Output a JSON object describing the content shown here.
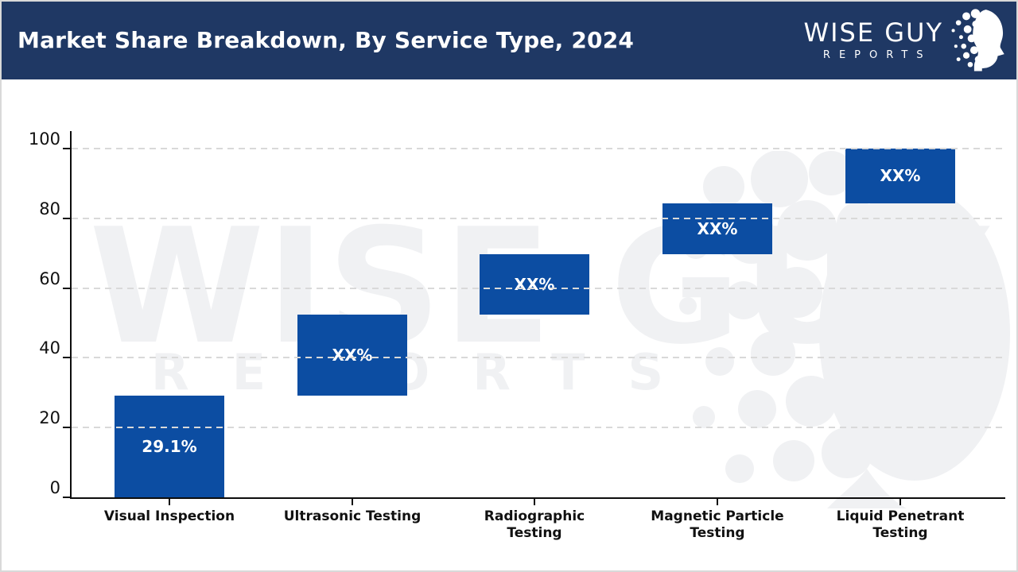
{
  "header": {
    "title": "Market Share Breakdown, By Service Type, 2024",
    "logo": {
      "name": "WISE GUY",
      "sub": "REPORTS"
    }
  },
  "watermark": {
    "line1": "WISE GUY",
    "line2": "REPORTS"
  },
  "chart_data": {
    "type": "bar",
    "variant": "waterfall-floating-bars",
    "title": "Market Share Breakdown, By Service Type, 2024",
    "xlabel": "",
    "ylabel": "",
    "categories": [
      "Visual Inspection",
      "Ultrasonic Testing",
      "Radiographic\nTesting",
      "Magnetic Particle\nTesting",
      "Liquid Penetrant\nTesting"
    ],
    "segments": [
      {
        "category": "Visual Inspection",
        "start": 0,
        "end": 29.1,
        "label": "29.1%"
      },
      {
        "category": "Ultrasonic Testing",
        "start": 29.1,
        "end": 52.4,
        "label": "XX%"
      },
      {
        "category": "Radiographic Testing",
        "start": 52.4,
        "end": 69.7,
        "label": "XX%"
      },
      {
        "category": "Magnetic Particle Testing",
        "start": 69.7,
        "end": 84.3,
        "label": "XX%"
      },
      {
        "category": "Liquid Penetrant Testing",
        "start": 84.3,
        "end": 100,
        "label": "XX%"
      }
    ],
    "yticks": [
      0,
      20,
      40,
      60,
      80,
      100
    ],
    "ylim": [
      0,
      105
    ],
    "grid": "horizontal-dashed",
    "legend": "none",
    "bar_color": "#0c4da2"
  },
  "colors": {
    "header_bg": "#1f3864",
    "bar": "#0c4da2",
    "grid": "#d9d9d9",
    "axis": "#0d0d0d",
    "watermark": "#f0f1f3"
  }
}
